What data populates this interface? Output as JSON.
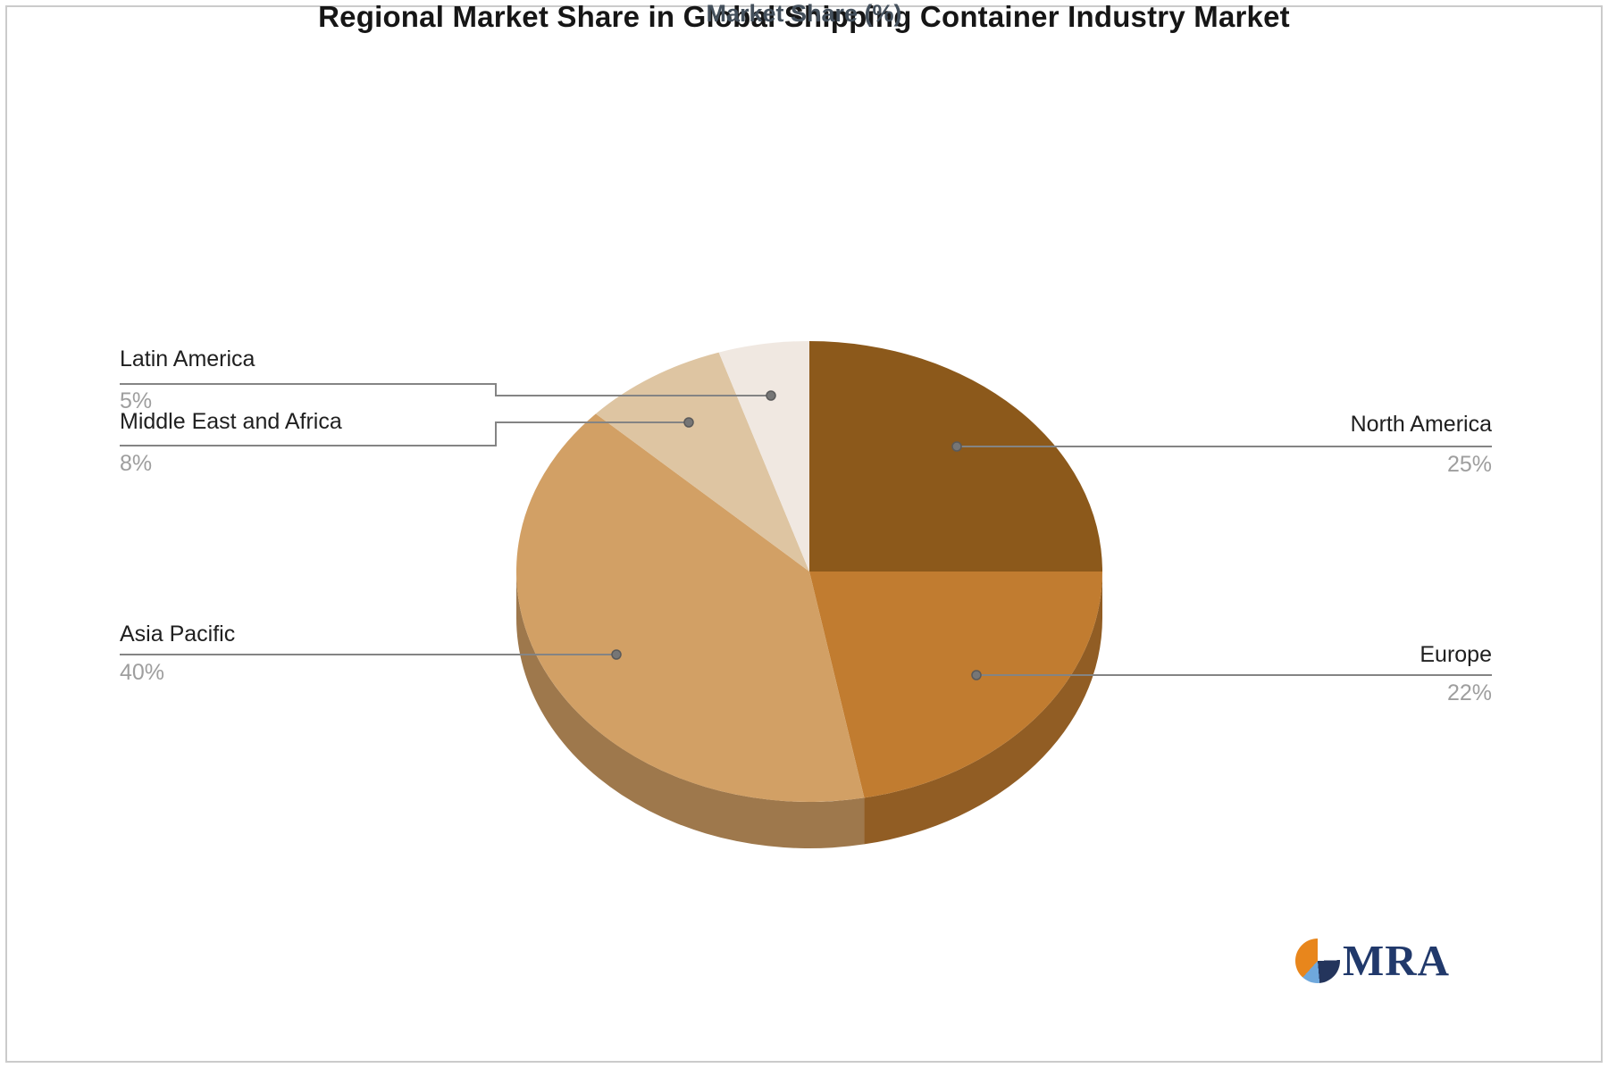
{
  "chart_data": {
    "type": "pie",
    "title": "Regional Market Share in Global Shipping Container Industry Market",
    "subtitle": "Market Share (%)",
    "unit": "%",
    "effect": "3d",
    "start_angle_deg": -90,
    "direction": "clockwise",
    "legend": "none",
    "labeling": "callout-leader-lines",
    "slices": [
      {
        "label": "North America",
        "value": 25,
        "pct_label": "25%",
        "color": "#8C591B",
        "side_color": "#694313",
        "callout_side": "right"
      },
      {
        "label": "Europe",
        "value": 22,
        "pct_label": "22%",
        "color": "#C17C30",
        "side_color": "#915D24",
        "callout_side": "right"
      },
      {
        "label": "Asia Pacific",
        "value": 40,
        "pct_label": "40%",
        "color": "#D2A065",
        "side_color": "#9E784C",
        "callout_side": "left"
      },
      {
        "label": "Middle East and Africa",
        "value": 8,
        "pct_label": "8%",
        "color": "#DEC5A2",
        "side_color": "#A7947A",
        "callout_side": "left"
      },
      {
        "label": "Latin America",
        "value": 5,
        "pct_label": "5%",
        "color": "#F0E8E1",
        "side_color": "#B4AEA9",
        "callout_side": "left"
      }
    ]
  },
  "colors": {
    "leader_line": "#848484",
    "leader_dot": "#767676",
    "label_text": "#202020",
    "pct_text": "#9e9e9e",
    "title_text": "#161616",
    "subtitle_text": "#44505c",
    "frame_border": "#cbcbcb",
    "logo_navy": "#21396b",
    "logo_orange": "#e8861c",
    "logo_lightblue": "#6fa8dc"
  },
  "logo": {
    "text": "MRA"
  }
}
